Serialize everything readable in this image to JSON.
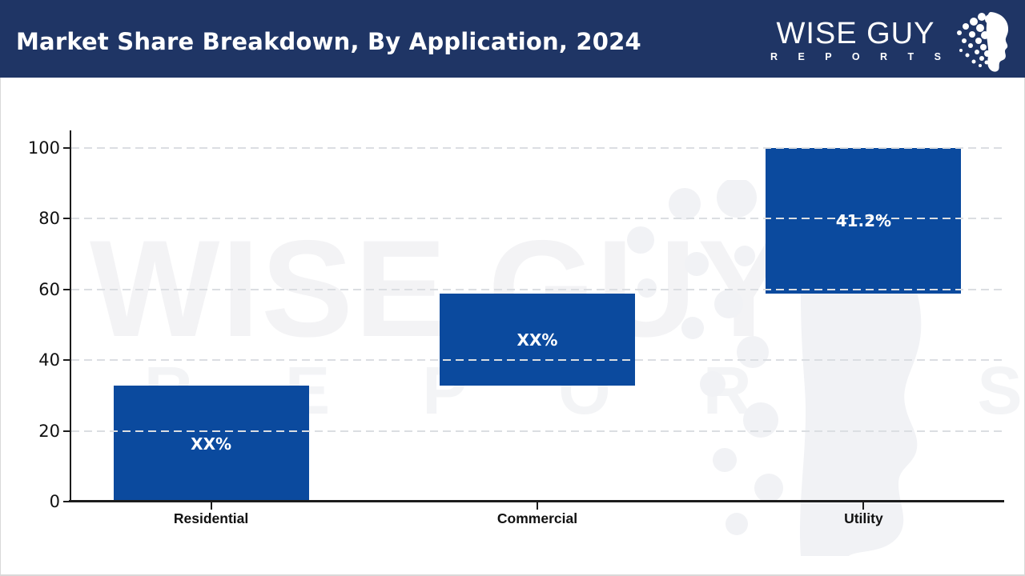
{
  "header": {
    "title": "Market Share Breakdown, By Application, 2024",
    "bg_color": "#1f3565",
    "logo": {
      "name": "WISE GUY",
      "sub": "R E P O R T S"
    }
  },
  "watermark": {
    "line1": "WISE GUY",
    "line2": "R E P O R T S"
  },
  "chart_data": {
    "type": "bar",
    "variant": "waterfall",
    "title": "Market Share Breakdown, By Application, 2024",
    "categories": [
      "Residential",
      "Commercial",
      "Utility"
    ],
    "segments": [
      {
        "category": "Residential",
        "start": 0,
        "end": 32.7,
        "value_label": "XX%"
      },
      {
        "category": "Commercial",
        "start": 32.7,
        "end": 58.8,
        "value_label": "XX%"
      },
      {
        "category": "Utility",
        "start": 58.8,
        "end": 100,
        "value_label": "41.2%"
      }
    ],
    "values_span": [
      32.7,
      26.1,
      41.2
    ],
    "y_ticks": [
      0,
      20,
      40,
      60,
      80,
      100
    ],
    "ylim": [
      0,
      105
    ],
    "xlabel": "",
    "ylabel": "",
    "bar_color": "#0b4a9e",
    "bar_label_color": "#ffffff",
    "grid": {
      "axis": "y",
      "style": "dashed",
      "color": "#dbdee2",
      "drawn_over_bars": true
    },
    "legend": "none"
  }
}
